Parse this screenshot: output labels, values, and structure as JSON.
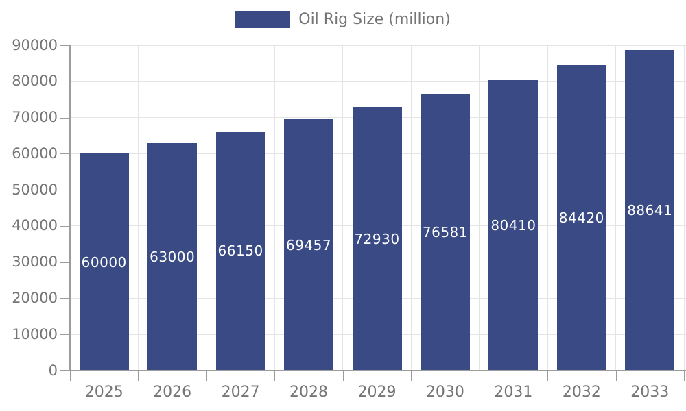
{
  "legend": {
    "label": "Oil Rig Size (million)"
  },
  "colors": {
    "bar": "#3a4a84",
    "axis": "#9c9c9c",
    "grid": "#e4e4e4",
    "tick_label": "#757575",
    "legend_text": "#757575",
    "value_label": "#ffffff",
    "background": "#ffffff"
  },
  "chart_data": {
    "type": "bar",
    "title": "",
    "categories": [
      "2025",
      "2026",
      "2027",
      "2028",
      "2029",
      "2030",
      "2031",
      "2032",
      "2033"
    ],
    "series": [
      {
        "name": "Oil Rig Size (million)",
        "values": [
          60000,
          63000,
          66150,
          69457,
          72930,
          76581,
          80410,
          84420,
          88641
        ]
      }
    ],
    "bar_value_labels": [
      "60000",
      "63000",
      "66150",
      "69457",
      "72930",
      "76581",
      "80410",
      "84420",
      "88641"
    ],
    "xlabel": "",
    "ylabel": "",
    "ylim": [
      0,
      90000
    ],
    "y_ticks": [
      0,
      10000,
      20000,
      30000,
      40000,
      50000,
      60000,
      70000,
      80000,
      90000
    ],
    "y_tick_labels": [
      "0",
      "10000",
      "20000",
      "30000",
      "40000",
      "50000",
      "60000",
      "70000",
      "80000",
      "90000"
    ],
    "grid": true,
    "legend_position": "top-center",
    "value_labels_inside_bars": true
  }
}
